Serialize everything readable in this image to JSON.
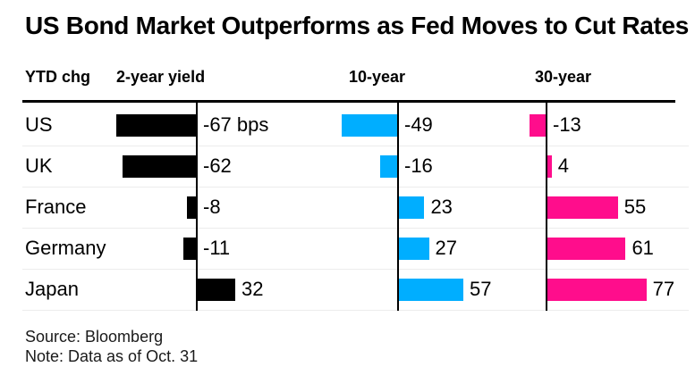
{
  "title": "US Bond Market Outperforms as Fed Moves to Cut Rates",
  "header": {
    "row_label": "YTD chg",
    "columns": [
      "2-year yield",
      "10-year",
      "30-year"
    ]
  },
  "chart_data": {
    "type": "bar",
    "orientation": "horizontal",
    "unit": "bps",
    "categories": [
      "US",
      "UK",
      "France",
      "Germany",
      "Japan"
    ],
    "series": [
      {
        "name": "2-year yield",
        "color": "#000000",
        "values": [
          -67,
          -62,
          -8,
          -11,
          32
        ],
        "value_labels": [
          "-67 bps",
          "-62",
          "-8",
          "-11",
          "32"
        ]
      },
      {
        "name": "10-year",
        "color": "#00aeff",
        "values": [
          -49,
          -16,
          23,
          27,
          57
        ],
        "value_labels": [
          "-49",
          "-16",
          "23",
          "27",
          "57"
        ]
      },
      {
        "name": "30-year",
        "color": "#ff0d8c",
        "values": [
          -13,
          4,
          55,
          61,
          77
        ],
        "value_labels": [
          "-13",
          "4",
          "55",
          "61",
          "77"
        ]
      }
    ],
    "baseline": 0,
    "grid": "row-separators-only",
    "legend_position": "column-headers"
  },
  "footer": {
    "source": "Source: Bloomberg",
    "note": "Note: Data as of Oct. 31"
  }
}
